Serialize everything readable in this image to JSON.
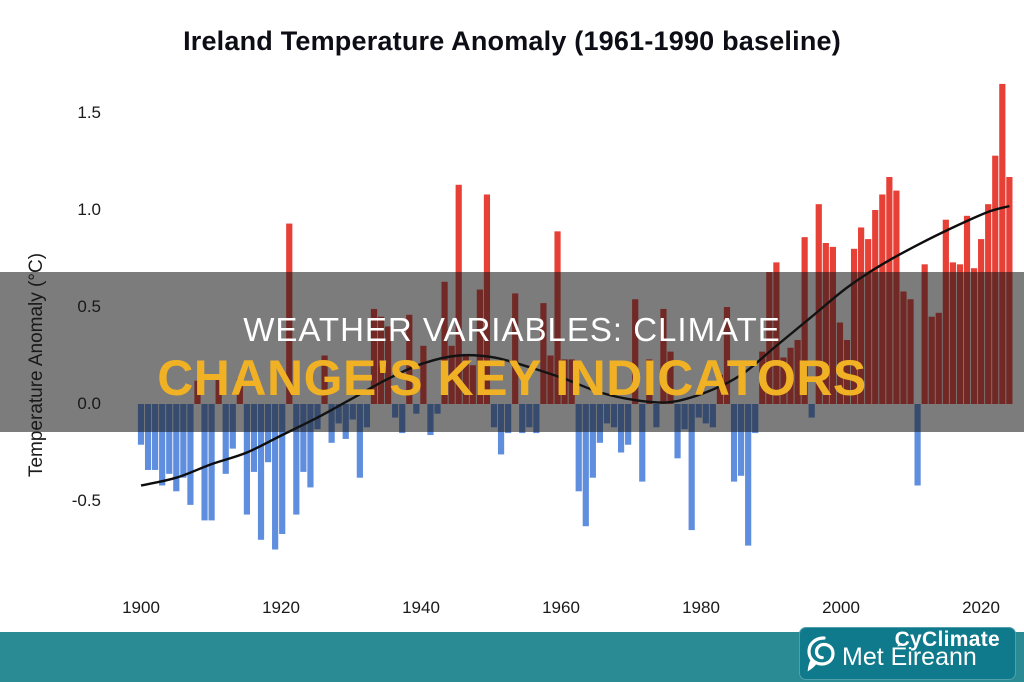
{
  "title": "Ireland Temperature Anomaly (1961-1990 baseline)",
  "overlay": {
    "line1": "WEATHER VARIABLES: CLIMATE",
    "line2": "CHANGE'S KEY INDICATORS",
    "line1_color": "#ffffff",
    "line2_color": "#f0b124"
  },
  "footer": {
    "brand": "CyClimate",
    "logo_text": "Met Éireann",
    "strip_color": "#2b8b95",
    "box_color": "#0f7a8b",
    "icon": "cyclone-swirl-icon"
  },
  "chart_data": {
    "type": "bar",
    "title": "Ireland Temperature Anomaly (1961-1990 baseline)",
    "xlabel": "",
    "ylabel": "Temperature Anomaly (°C)",
    "yticks": [
      "1.5",
      "1.0",
      "0.5",
      "0.0",
      "-0.5"
    ],
    "ytick_values": [
      1.5,
      1.0,
      0.5,
      0.0,
      -0.5
    ],
    "xticks": [
      "1900",
      "1920",
      "1940",
      "1960",
      "1980",
      "2000",
      "2020"
    ],
    "xtick_values": [
      1900,
      1920,
      1940,
      1960,
      1980,
      2000,
      2020
    ],
    "ylim": [
      -0.9,
      1.7
    ],
    "grid": false,
    "legend": "none",
    "positive_color": "#e74036",
    "negative_color": "#5f8edf",
    "trend_color": "#0d0d0d",
    "start_year": 1900,
    "end_year": 2023,
    "values": [
      -0.21,
      -0.34,
      -0.34,
      -0.42,
      -0.36,
      -0.45,
      -0.38,
      -0.52,
      0.12,
      -0.6,
      -0.6,
      0.14,
      -0.36,
      -0.23,
      0.13,
      -0.57,
      -0.35,
      -0.7,
      -0.3,
      -0.75,
      -0.67,
      0.93,
      -0.57,
      -0.35,
      -0.43,
      -0.13,
      0.25,
      -0.2,
      -0.1,
      -0.18,
      -0.08,
      -0.38,
      -0.12,
      0.49,
      0.45,
      0.4,
      -0.07,
      -0.15,
      0.46,
      -0.05,
      0.3,
      -0.16,
      -0.05,
      0.63,
      0.3,
      1.13,
      0.25,
      0.2,
      0.59,
      1.08,
      -0.12,
      -0.26,
      -0.15,
      0.57,
      -0.15,
      -0.12,
      -0.15,
      0.52,
      0.25,
      0.89,
      0.23,
      0.23,
      -0.45,
      -0.63,
      -0.38,
      -0.2,
      -0.1,
      -0.12,
      -0.25,
      -0.21,
      0.54,
      -0.4,
      0.23,
      -0.12,
      0.49,
      0.27,
      -0.28,
      -0.13,
      -0.65,
      -0.07,
      -0.1,
      -0.12,
      0.15,
      0.5,
      -0.4,
      -0.37,
      -0.73,
      -0.15,
      0.27,
      0.68,
      0.73,
      0.24,
      0.29,
      0.33,
      0.86,
      -0.07,
      1.03,
      0.83,
      0.81,
      0.42,
      0.33,
      0.8,
      0.91,
      0.85,
      1.0,
      1.08,
      1.17,
      1.1,
      0.58,
      0.54,
      -0.42,
      0.72,
      0.45,
      0.47,
      0.95,
      0.73,
      0.72,
      0.97,
      0.7,
      0.85,
      1.03,
      1.28,
      1.65,
      1.17
    ],
    "trend": {
      "years": [
        1900,
        1905,
        1910,
        1915,
        1920,
        1925,
        1930,
        1935,
        1940,
        1945,
        1950,
        1955,
        1960,
        1965,
        1970,
        1975,
        1980,
        1985,
        1990,
        1995,
        2000,
        2005,
        2010,
        2015,
        2020,
        2023
      ],
      "values": [
        -0.42,
        -0.38,
        -0.31,
        -0.25,
        -0.16,
        -0.07,
        0.03,
        0.13,
        0.21,
        0.25,
        0.24,
        0.19,
        0.13,
        0.06,
        0.02,
        0.01,
        0.06,
        0.15,
        0.3,
        0.45,
        0.6,
        0.72,
        0.82,
        0.91,
        0.99,
        1.02
      ]
    }
  }
}
